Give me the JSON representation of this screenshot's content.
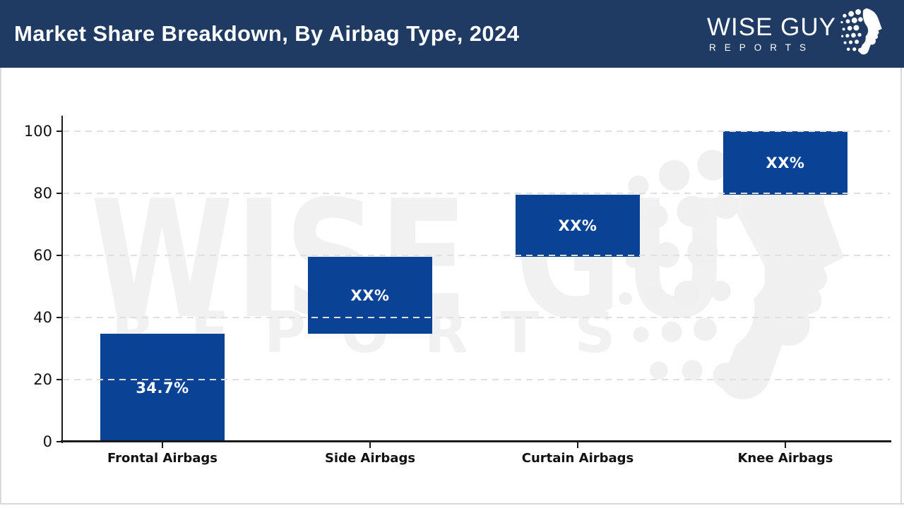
{
  "header": {
    "title": "Market Share Breakdown, By Airbag Type, 2024",
    "logo": {
      "wordmark": "WISE GUY",
      "subtitle": "REPORTS"
    }
  },
  "watermark": {
    "wordmark": "WISE GUY",
    "subtitle": "REPORTS"
  },
  "colors": {
    "header_bg": "#1f3a63",
    "title_text": "#ffffff",
    "bar_fill": "#0a4296",
    "bar_label": "#ffffff",
    "axis": "#1a1a1a",
    "gridline": "#e0e0e0",
    "watermark": "#f1f1f2",
    "frame_border": "#d9d9d9"
  },
  "chart_data": {
    "type": "bar",
    "variant": "floating stacked-step bars (waterfall-style market share)",
    "title": "Market Share Breakdown, By Airbag Type, 2024",
    "categories": [
      "Frontal Airbags",
      "Side Airbags",
      "Curtain Airbags",
      "Knee Airbags"
    ],
    "segments": [
      {
        "category": "Frontal Airbags",
        "start": 0,
        "end": 34.7,
        "label": "34.7%"
      },
      {
        "category": "Side Airbags",
        "start": 34.7,
        "end": 59.5,
        "label": "XX%"
      },
      {
        "category": "Curtain Airbags",
        "start": 59.5,
        "end": 79.5,
        "label": "XX%"
      },
      {
        "category": "Knee Airbags",
        "start": 79.5,
        "end": 100,
        "label": "XX%"
      }
    ],
    "xlabel": "",
    "ylabel": "",
    "y_ticks": [
      0,
      20,
      40,
      60,
      80,
      100
    ],
    "ylim": [
      0,
      105
    ],
    "grid": "horizontal dashed, drawn over bars",
    "legend": "none"
  }
}
